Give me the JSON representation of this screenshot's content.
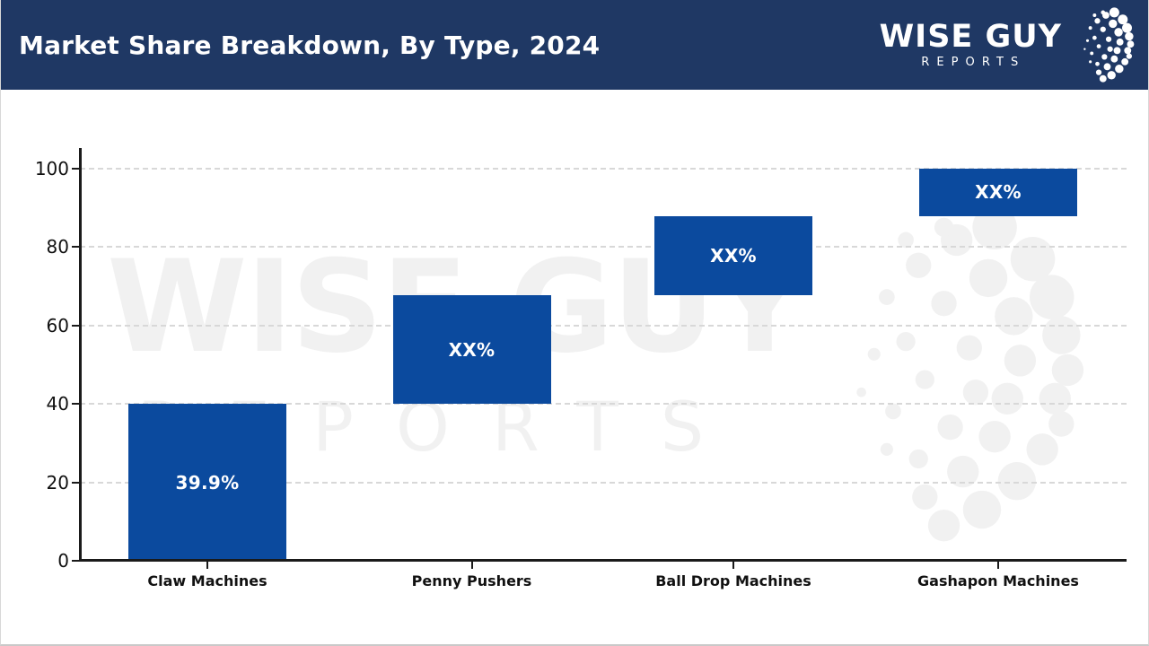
{
  "header": {
    "title": "Market Share Breakdown, By Type, 2024",
    "bg_color": "#1f3864",
    "text_color": "#ffffff",
    "logo": {
      "line1": "WISE GUY",
      "line2": "REPORTS"
    }
  },
  "watermark": {
    "line1": "WISE GUY",
    "line2": "REPORTS",
    "color": "#f1f1f1"
  },
  "chart_data": {
    "type": "bar",
    "subtype": "waterfall",
    "title": "Market Share Breakdown, By Type, 2024",
    "categories": [
      "Claw Machines",
      "Penny Pushers",
      "Ball Drop Machines",
      "Gashapon Machines"
    ],
    "series": [
      {
        "name": "Claw Machines",
        "start": 0,
        "end": 39.9,
        "value": 39.9,
        "value_label": "39.9%"
      },
      {
        "name": "Penny Pushers",
        "start": 39.9,
        "end": 67.7,
        "value": 27.8,
        "value_label": "XX%"
      },
      {
        "name": "Ball Drop Machines",
        "start": 67.7,
        "end": 87.7,
        "value": 20.0,
        "value_label": "XX%"
      },
      {
        "name": "Gashapon Machines",
        "start": 87.7,
        "end": 100.0,
        "value": 12.3,
        "value_label": "XX%"
      }
    ],
    "xlabel": "",
    "ylabel": "",
    "ylim": [
      0,
      105
    ],
    "yticks": [
      0,
      20,
      40,
      60,
      80,
      100
    ],
    "grid": "horizontal-dashed",
    "grid_color": "#d8d8d8",
    "axis_color": "#1a1a1a",
    "bar_color": "#0b4a9e",
    "bar_label_color": "#ffffff",
    "legend": "none"
  }
}
